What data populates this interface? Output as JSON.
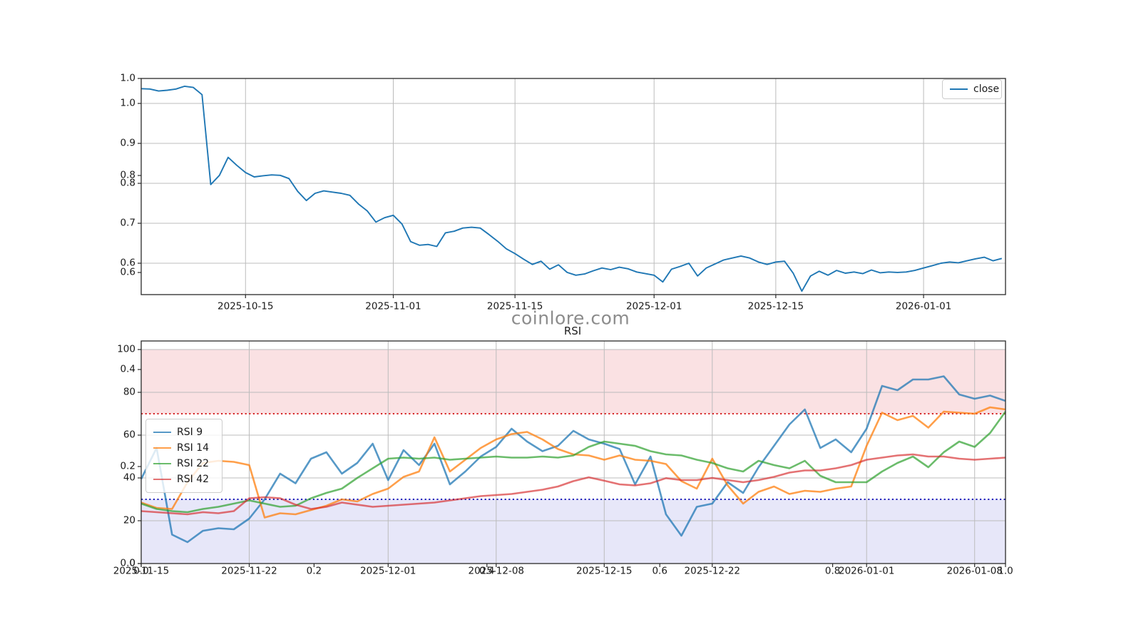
{
  "watermark": "coinlore.com",
  "colors": {
    "close": "#1f77b4",
    "rsi9": "rgba(31,119,180,0.75)",
    "rsi14": "rgba(255,127,14,0.75)",
    "rsi22": "rgba(44,160,44,0.7)",
    "rsi42": "rgba(214,39,40,0.65)",
    "overbought_band": "rgba(220,53,69,0.15)",
    "oversold_band": "rgba(95,95,215,0.15)",
    "overbought_line": "#d62728",
    "oversold_line": "#2323bb",
    "grid": "#bcbcbc",
    "frame": "#2a2a2a"
  },
  "overlay_axis": {
    "y_tick_labels": [
      "1.0",
      "0.8",
      "0.6",
      "0.4",
      "0.2",
      "0.0"
    ],
    "x_tick_labels": [
      "0.0",
      "0.2",
      "0.4",
      "0.6",
      "0.8",
      "1.0"
    ]
  },
  "chart_data": [
    {
      "type": "line",
      "title": "",
      "legend_position": "upper right",
      "grid": true,
      "x_start": "2025-10-03",
      "x_end": "2026-01-10",
      "freq": "daily",
      "x_tick_labels": [
        "2025-10-15",
        "2025-11-01",
        "2025-11-15",
        "2025-12-01",
        "2025-12-15",
        "2026-01-01"
      ],
      "y_tick_labels": [
        "1.0",
        "0.9",
        "0.8",
        "0.7",
        "0.6"
      ],
      "ylim": [
        0.523,
        1.063
      ],
      "series": [
        {
          "name": "close",
          "color_key": "close",
          "values": [
            1.037,
            1.036,
            1.031,
            1.033,
            1.036,
            1.043,
            1.04,
            1.022,
            0.797,
            0.82,
            0.865,
            0.845,
            0.827,
            0.816,
            0.819,
            0.821,
            0.82,
            0.812,
            0.78,
            0.757,
            0.775,
            0.781,
            0.778,
            0.775,
            0.77,
            0.748,
            0.731,
            0.703,
            0.714,
            0.72,
            0.698,
            0.654,
            0.645,
            0.647,
            0.642,
            0.676,
            0.68,
            0.688,
            0.69,
            0.688,
            0.672,
            0.655,
            0.636,
            0.624,
            0.61,
            0.597,
            0.605,
            0.585,
            0.596,
            0.577,
            0.57,
            0.573,
            0.581,
            0.588,
            0.584,
            0.59,
            0.586,
            0.578,
            0.574,
            0.57,
            0.553,
            0.585,
            0.592,
            0.6,
            0.568,
            0.588,
            0.598,
            0.608,
            0.613,
            0.618,
            0.613,
            0.603,
            0.597,
            0.603,
            0.605,
            0.575,
            0.53,
            0.568,
            0.58,
            0.57,
            0.582,
            0.575,
            0.578,
            0.574,
            0.583,
            0.576,
            0.578,
            0.577,
            0.578,
            0.582,
            0.588,
            0.594,
            0.6,
            0.603,
            0.601,
            0.606,
            0.611,
            0.615,
            0.606,
            0.612
          ]
        }
      ]
    },
    {
      "type": "line",
      "title": "RSI",
      "legend_position": "center left",
      "grid": true,
      "x_start": "2025-11-15",
      "x_end": "2026-01-10",
      "freq": "daily",
      "x_tick_labels": [
        "2025-11-15",
        "2025-11-22",
        "2025-12-01",
        "2025-12-08",
        "2025-12-15",
        "2025-12-22",
        "2026-01-01",
        "2026-01-08"
      ],
      "y_tick_labels": [
        "100",
        "80",
        "60",
        "40",
        "20",
        "0"
      ],
      "ylim": [
        0,
        106
      ],
      "overbought_level": 70,
      "oversold_level": 30,
      "overbought_band": [
        70,
        100
      ],
      "oversold_band": [
        0,
        30
      ],
      "series": [
        {
          "name": "RSI 9",
          "color_key": "rsi9",
          "values": [
            39.5,
            54,
            13.5,
            10,
            15.3,
            16.5,
            16,
            21,
            30,
            42,
            37.5,
            49,
            52,
            42,
            47,
            56,
            39,
            53,
            46,
            56,
            37,
            43,
            50,
            54.5,
            63,
            57,
            52.5,
            55,
            62,
            58,
            56,
            53.5,
            37,
            50,
            23,
            13,
            26.5,
            28,
            38,
            33,
            45,
            55,
            65,
            72,
            54,
            58,
            52,
            63,
            83,
            81,
            86,
            86,
            87.5,
            79,
            77,
            78.5,
            76
          ]
        },
        {
          "name": "RSI 14",
          "color_key": "rsi14",
          "values": [
            28.5,
            26,
            25.5,
            38,
            47,
            48,
            47.5,
            46,
            21.5,
            23.5,
            23,
            25,
            27,
            30,
            29,
            32.5,
            35,
            40.5,
            43,
            59,
            43,
            48.5,
            54,
            58,
            60.5,
            61.5,
            58,
            53.5,
            51,
            50.5,
            48.5,
            50.5,
            48.5,
            48,
            46.5,
            38.5,
            35,
            49,
            36.5,
            28,
            33.5,
            36,
            32.5,
            34,
            33.5,
            35,
            36,
            55,
            70.5,
            67,
            69,
            63.5,
            71,
            70.5,
            70,
            73,
            72
          ]
        },
        {
          "name": "RSI 22",
          "color_key": "rsi22",
          "values": [
            28,
            25.5,
            24.5,
            24,
            25.5,
            26.5,
            28,
            29.5,
            28,
            26.5,
            27,
            30.5,
            33,
            35,
            40,
            44.5,
            49,
            49.5,
            49,
            49.5,
            48.5,
            49,
            49.5,
            50,
            49.5,
            49.5,
            50,
            49.5,
            50.5,
            54.5,
            57,
            56,
            55,
            52.5,
            51,
            50.5,
            48.5,
            47,
            44.5,
            43,
            48,
            46,
            44.5,
            48,
            41,
            38,
            38,
            38,
            43,
            47,
            50,
            45,
            52,
            57,
            54.5,
            61,
            71
          ]
        },
        {
          "name": "RSI 42",
          "color_key": "rsi42",
          "values": [
            24.5,
            24,
            23.5,
            23,
            24,
            23.5,
            24.5,
            30.5,
            31,
            30.5,
            27.5,
            25.5,
            26.5,
            28.5,
            27.5,
            26.5,
            27,
            27.5,
            28,
            28.5,
            29.5,
            30.5,
            31.5,
            32,
            32.5,
            33.5,
            34.5,
            36,
            38.5,
            40.3,
            38.7,
            37,
            36.5,
            37.5,
            39.9,
            39,
            39,
            40,
            39,
            38,
            39,
            40.5,
            42.5,
            43.5,
            43.5,
            44.5,
            46,
            48.5,
            49.5,
            50.5,
            51,
            50,
            50,
            49,
            48.5,
            49,
            49.5
          ]
        }
      ]
    }
  ]
}
